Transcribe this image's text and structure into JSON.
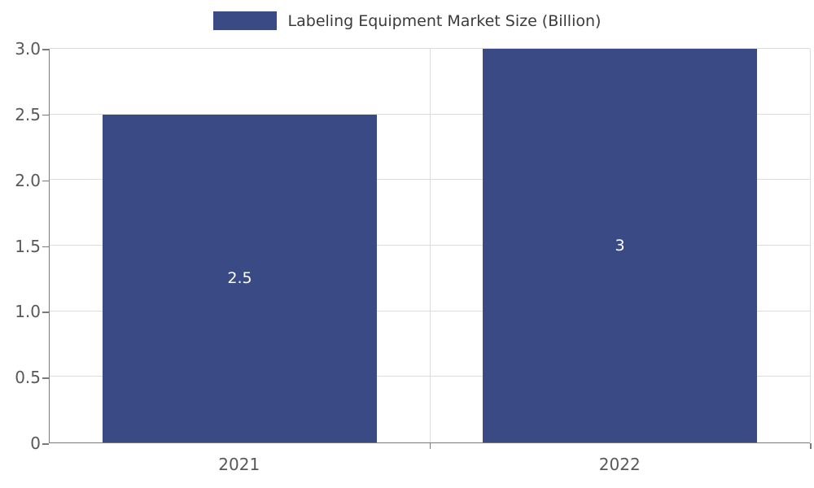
{
  "legend": {
    "label": "Labeling Equipment Market Size (Billion)"
  },
  "chart_data": {
    "type": "bar",
    "title": "Labeling Equipment Market Size (Billion)",
    "categories": [
      "2021",
      "2022"
    ],
    "values": [
      2.5,
      3
    ],
    "value_labels": [
      "2.5",
      "3"
    ],
    "xlabel": "",
    "ylabel": "",
    "ylim": [
      0,
      3
    ],
    "yticks": [
      0,
      0.5,
      1.0,
      1.5,
      2.0,
      2.5,
      3.0
    ],
    "ytick_labels": [
      "0",
      "0.5",
      "1.0",
      "1.5",
      "2.0",
      "2.5",
      "3.0"
    ],
    "grid": true,
    "legend_position": "top",
    "bar_color": "#394a85",
    "bar_label_color": "#ffffff",
    "bar_width_fraction": 0.72
  }
}
